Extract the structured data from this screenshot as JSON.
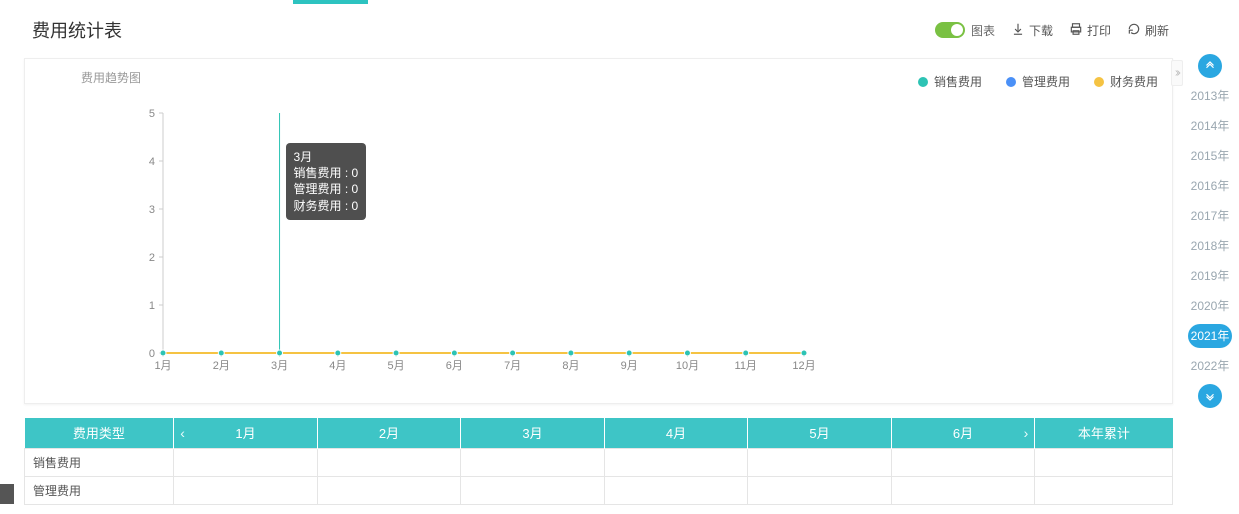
{
  "header": {
    "title": "费用统计表",
    "toggle_label": "图表",
    "download_label": "下载",
    "print_label": "打印",
    "refresh_label": "刷新"
  },
  "chart": {
    "type": "line",
    "title": "费用趋势图",
    "series": [
      {
        "name": "销售费用",
        "color": "#2dc3b4",
        "values": [
          0,
          0,
          0,
          0,
          0,
          0,
          0,
          0,
          0,
          0,
          0,
          0
        ]
      },
      {
        "name": "管理费用",
        "color": "#4a90f7",
        "values": [
          0,
          0,
          0,
          0,
          0,
          0,
          0,
          0,
          0,
          0,
          0,
          0
        ]
      },
      {
        "name": "财务费用",
        "color": "#f5c343",
        "values": [
          0,
          0,
          0,
          0,
          0,
          0,
          0,
          0,
          0,
          0,
          0,
          0
        ]
      }
    ],
    "x_categories": [
      "1月",
      "2月",
      "3月",
      "4月",
      "5月",
      "6月",
      "7月",
      "8月",
      "9月",
      "10月",
      "11月",
      "12月"
    ],
    "ylim": [
      0,
      5
    ],
    "ytick_step": 1,
    "axis_color": "#cccccc",
    "tick_label_color": "#888888",
    "line_width": 2,
    "marker_radius": 3,
    "marker_fill": "#2dc3b4",
    "highlight_index": 2,
    "highlight_line_color": "#2dc3b4",
    "tooltip": {
      "title": "3月",
      "rows": [
        {
          "label": "销售费用",
          "value": "0"
        },
        {
          "label": "管理费用",
          "value": "0"
        },
        {
          "label": "财务费用",
          "value": "0"
        }
      ],
      "bg": "rgba(60,60,60,0.9)"
    },
    "background_color": "#ffffff"
  },
  "table": {
    "first_col_header": "费用类型",
    "month_headers": [
      "1月",
      "2月",
      "3月",
      "4月",
      "5月",
      "6月"
    ],
    "total_header": "本年累计",
    "rows": [
      {
        "label": "销售费用",
        "cells": [
          "",
          "",
          "",
          "",
          "",
          ""
        ],
        "total": ""
      },
      {
        "label": "管理费用",
        "cells": [
          "",
          "",
          "",
          "",
          "",
          ""
        ],
        "total": ""
      }
    ],
    "header_bg": "#3ec5c6",
    "header_text_color": "#ffffff"
  },
  "year_bar": {
    "items": [
      "2013年",
      "2014年",
      "2015年",
      "2016年",
      "2017年",
      "2018年",
      "2019年",
      "2020年",
      "2021年",
      "2022年"
    ],
    "active": "2021年",
    "scroll_bg": "#2aa7e1"
  }
}
